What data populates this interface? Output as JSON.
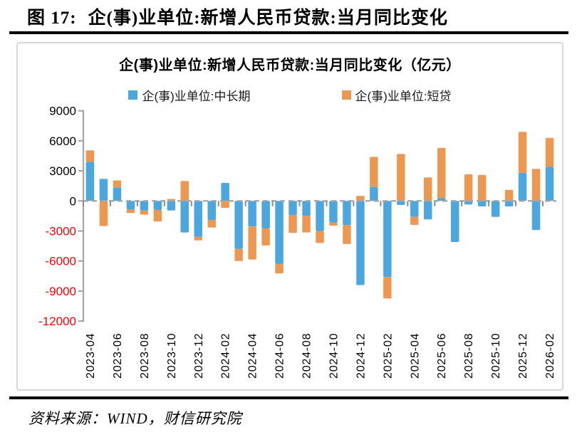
{
  "page": {
    "figure_label": "图 17:",
    "figure_title": "企(事)业单位:新增人民币贷款:当月同比变化",
    "source": "资料来源：WIND，财信研究院"
  },
  "chart_data": {
    "type": "bar",
    "stacked": true,
    "title": "企(事)业单位:新增人民币贷款:当月同比变化（亿元）",
    "unit": "亿元",
    "legend_position": "top",
    "grid": false,
    "ylim": [
      -12000,
      9000
    ],
    "y_ticks": [
      9000,
      6000,
      3000,
      0,
      -3000,
      -6000,
      -9000,
      -12000
    ],
    "x_label_every": 2,
    "categories": [
      "2023-04",
      "2023-05",
      "2023-06",
      "2023-07",
      "2023-08",
      "2023-09",
      "2023-10",
      "2023-11",
      "2023-12",
      "2024-01",
      "2024-02",
      "2024-03",
      "2024-04",
      "2024-05",
      "2024-06",
      "2024-07",
      "2024-08",
      "2024-09",
      "2024-10",
      "2024-11",
      "2024-12",
      "2025-01",
      "2025-02",
      "2025-03",
      "2025-04",
      "2025-05",
      "2025-06",
      "2025-07",
      "2025-08",
      "2025-09",
      "2025-10",
      "2025-11",
      "2025-12",
      "2026-01",
      "2026-02"
    ],
    "series": [
      {
        "name": "企(事)业单位:中长期",
        "color": "#4ba7dd",
        "values": [
          3900,
          2200,
          1350,
          -830,
          -970,
          -900,
          -950,
          -3150,
          -3600,
          -1900,
          1800,
          -4800,
          -2550,
          -2750,
          -6300,
          -1400,
          -1500,
          -3000,
          -2150,
          -2400,
          -8400,
          1400,
          -7600,
          -400,
          -1600,
          -1850,
          300,
          -4100,
          -350,
          -550,
          -1600,
          -550,
          2800,
          -2900,
          3400
        ]
      },
      {
        "name": "企(事)业单位:短贷",
        "color": "#ec9853",
        "values": [
          1150,
          -2500,
          700,
          -380,
          -400,
          -1150,
          200,
          2000,
          -350,
          -760,
          -700,
          -1200,
          -3300,
          -1700,
          -950,
          -1800,
          -1650,
          -1200,
          -330,
          -1900,
          500,
          3000,
          -2150,
          4700,
          -800,
          2350,
          5000,
          0,
          2650,
          2600,
          0,
          1100,
          4100,
          3200,
          2900
        ]
      }
    ],
    "colors": {
      "axis": "#a6a6a6",
      "tick_label_positive": "#000000",
      "tick_label_negative": "#ff0000",
      "x_labels": "#000000"
    }
  }
}
